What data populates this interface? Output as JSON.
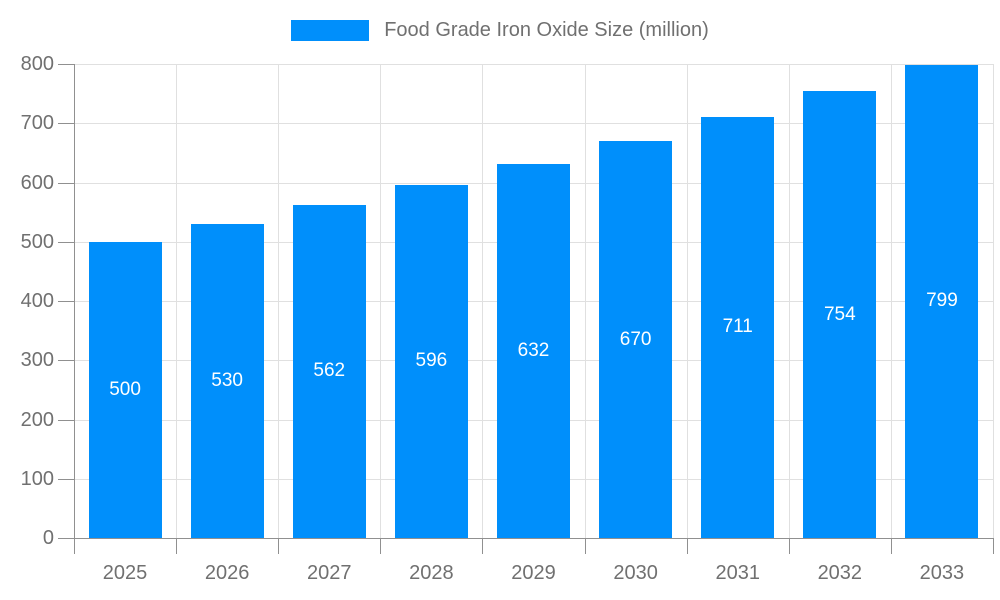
{
  "legend": {
    "label": "Food Grade Iron Oxide Size (million)"
  },
  "chart_data": {
    "type": "bar",
    "title": "Food Grade Iron Oxide Size (million)",
    "series_name": "Food Grade Iron Oxide Size (million)",
    "categories": [
      "2025",
      "2026",
      "2027",
      "2028",
      "2029",
      "2030",
      "2031",
      "2032",
      "2033"
    ],
    "values": [
      500,
      530,
      562,
      596,
      632,
      670,
      711,
      754,
      799
    ],
    "xlabel": "",
    "ylabel": "",
    "ylim": [
      0,
      800
    ],
    "y_ticks": [
      0,
      100,
      200,
      300,
      400,
      500,
      600,
      700,
      800
    ],
    "grid": true,
    "legend_position": "top",
    "bar_color": "#008FFB",
    "bar_label_color": "#ffffff",
    "axis_text_color": "#707070",
    "legend_text_color": "#707070",
    "grid_color": "#e0e0e0",
    "axis_line_color": "#909090",
    "background_color": "#ffffff"
  }
}
